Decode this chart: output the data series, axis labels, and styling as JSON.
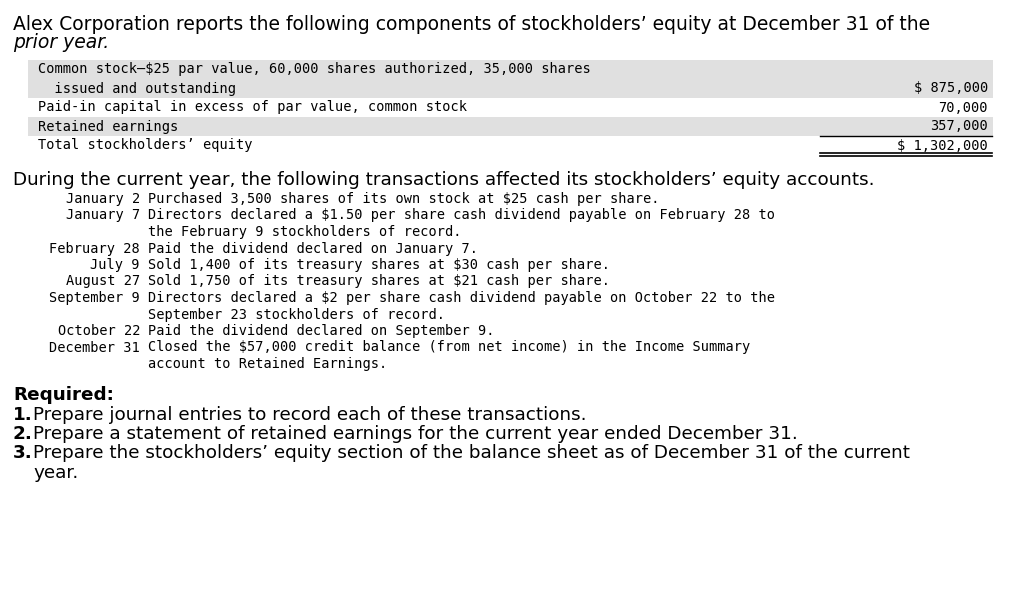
{
  "bg_color": "#ffffff",
  "title_line1": "Alex Corporation reports the following components of stockholders’ equity at December 31 of the",
  "title_line2": "prior year.",
  "title_fontsize": 13.5,
  "table_rows": [
    {
      "label": "Common stock–$25 par value, 60,000 shares authorized, 35,000 shares",
      "value": "",
      "shaded": true,
      "underline": false
    },
    {
      "label": "  issued and outstanding",
      "value": "$ 875,000",
      "shaded": true,
      "underline": false
    },
    {
      "label": "Paid-in capital in excess of par value, common stock",
      "value": "70,000",
      "shaded": false,
      "underline": false
    },
    {
      "label": "Retained earnings",
      "value": "357,000",
      "shaded": true,
      "underline": false
    },
    {
      "label": "Total stockholders’ equity",
      "value": "$ 1,302,000",
      "shaded": false,
      "underline": true
    }
  ],
  "section2_title": "During the current year, the following transactions affected its stockholders’ equity accounts.",
  "transactions": [
    {
      "date": "January 2",
      "text": "Purchased 3,500 shares of its own stock at $25 cash per share."
    },
    {
      "date": "January 7",
      "text": "Directors declared a $1.50 per share cash dividend payable on February 28 to\nthe February 9 stockholders of record."
    },
    {
      "date": "February 28",
      "text": "Paid the dividend declared on January 7."
    },
    {
      "date": "July 9",
      "text": "Sold 1,400 of its treasury shares at $30 cash per share."
    },
    {
      "date": "August 27",
      "text": "Sold 1,750 of its treasury shares at $21 cash per share."
    },
    {
      "date": "September 9",
      "text": "Directors declared a $2 per share cash dividend payable on October 22 to the\nSeptember 23 stockholders of record."
    },
    {
      "date": "October 22",
      "text": "Paid the dividend declared on September 9."
    },
    {
      "date": "December 31",
      "text": "Closed the $57,000 credit balance (from net income) in the Income Summary\naccount to Retained Earnings."
    }
  ],
  "required_label": "Required:",
  "required_items": [
    {
      "bold": "1.",
      "text": "Prepare journal entries to record each of these transactions."
    },
    {
      "bold": "2.",
      "text": "Prepare a statement of retained earnings for the current year ended December 31."
    },
    {
      "bold": "3.",
      "text": "Prepare the stockholders’ equity section of the balance sheet as of December 31 of the current\nyear."
    }
  ],
  "mono_font": "DejaVu Sans Mono",
  "sans_font": "DejaVu Sans",
  "shaded_color": "#e0e0e0",
  "text_color": "#000000",
  "font_size_mono": 9.8,
  "font_size_title": 13.5,
  "font_size_sans": 13.2,
  "font_size_req": 13.2
}
